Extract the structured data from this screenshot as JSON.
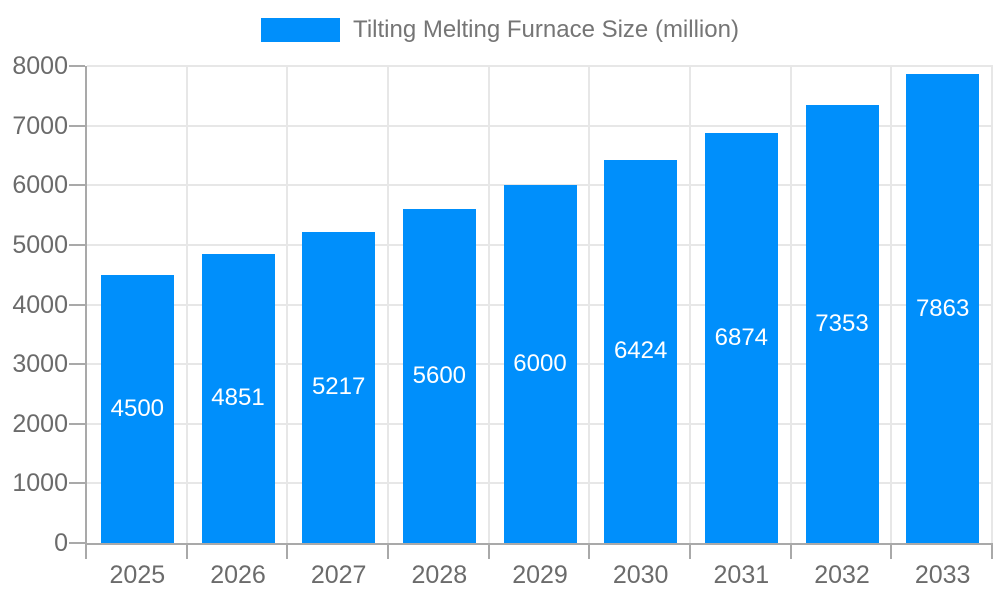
{
  "legend": {
    "label": "Tilting Melting Furnace Size (million)"
  },
  "chart_data": {
    "type": "bar",
    "title": "Tilting Melting Furnace Size (million)",
    "categories": [
      "2025",
      "2026",
      "2027",
      "2028",
      "2029",
      "2030",
      "2031",
      "2032",
      "2033"
    ],
    "values": [
      4500,
      4851,
      5217,
      5600,
      6000,
      6424,
      6874,
      7353,
      7863
    ],
    "series": [
      {
        "name": "Tilting Melting Furnace Size (million)",
        "values": [
          4500,
          4851,
          5217,
          5600,
          6000,
          6424,
          6874,
          7353,
          7863
        ]
      }
    ],
    "xlabel": "",
    "ylabel": "",
    "ylim": [
      0,
      8000
    ],
    "yticks": [
      0,
      1000,
      2000,
      3000,
      4000,
      5000,
      6000,
      7000,
      8000
    ],
    "grid": true,
    "legend_position": "top",
    "data_labels": "inside-center",
    "colors": {
      "bar": "#008FFB",
      "bar_label": "#FFFFFF",
      "axis_text": "#6B6B6B",
      "legend_text": "#757575",
      "grid_line": "#E7E7E7",
      "axis_line": "#A9A9A9",
      "background": "#FFFFFF"
    }
  }
}
